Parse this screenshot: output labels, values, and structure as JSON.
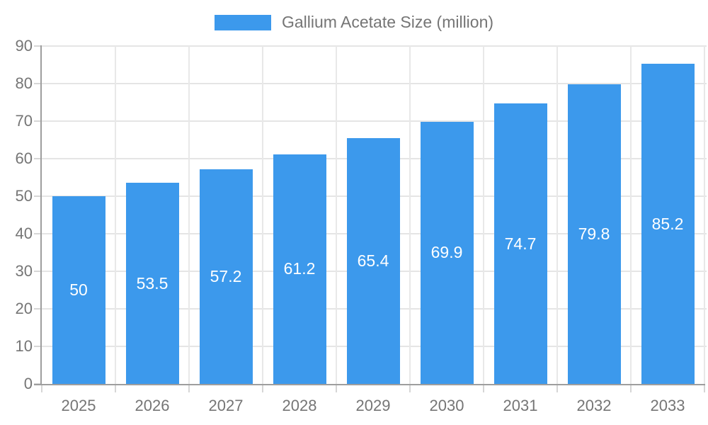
{
  "legend": {
    "label": "Gallium Acetate Size (million)"
  },
  "chart_data": {
    "type": "bar",
    "title": "",
    "xlabel": "",
    "ylabel": "",
    "categories": [
      "2025",
      "2026",
      "2027",
      "2028",
      "2029",
      "2030",
      "2031",
      "2032",
      "2033"
    ],
    "series": [
      {
        "name": "Gallium Acetate Size (million)",
        "values": [
          50,
          53.5,
          57.2,
          61.2,
          65.4,
          69.9,
          74.7,
          79.8,
          85.2
        ]
      }
    ],
    "value_labels": [
      "50",
      "53.5",
      "57.2",
      "61.2",
      "65.4",
      "69.9",
      "74.7",
      "79.8",
      "85.2"
    ],
    "ylim": [
      0,
      90
    ],
    "ytick_step": 10,
    "ytick_labels": [
      "0",
      "10",
      "20",
      "30",
      "40",
      "50",
      "60",
      "70",
      "80",
      "90"
    ],
    "grid": "both",
    "legend_position": "top-center",
    "colors": {
      "bar": "#3c99ec",
      "grid_h": "#e5e5e5",
      "grid_v": "#e8e8e8",
      "axis": "#9e9e9e",
      "tick": "#d6d6d6",
      "axis_text": "#757575",
      "value_label_text": "#ffffff",
      "background": "#ffffff"
    }
  }
}
